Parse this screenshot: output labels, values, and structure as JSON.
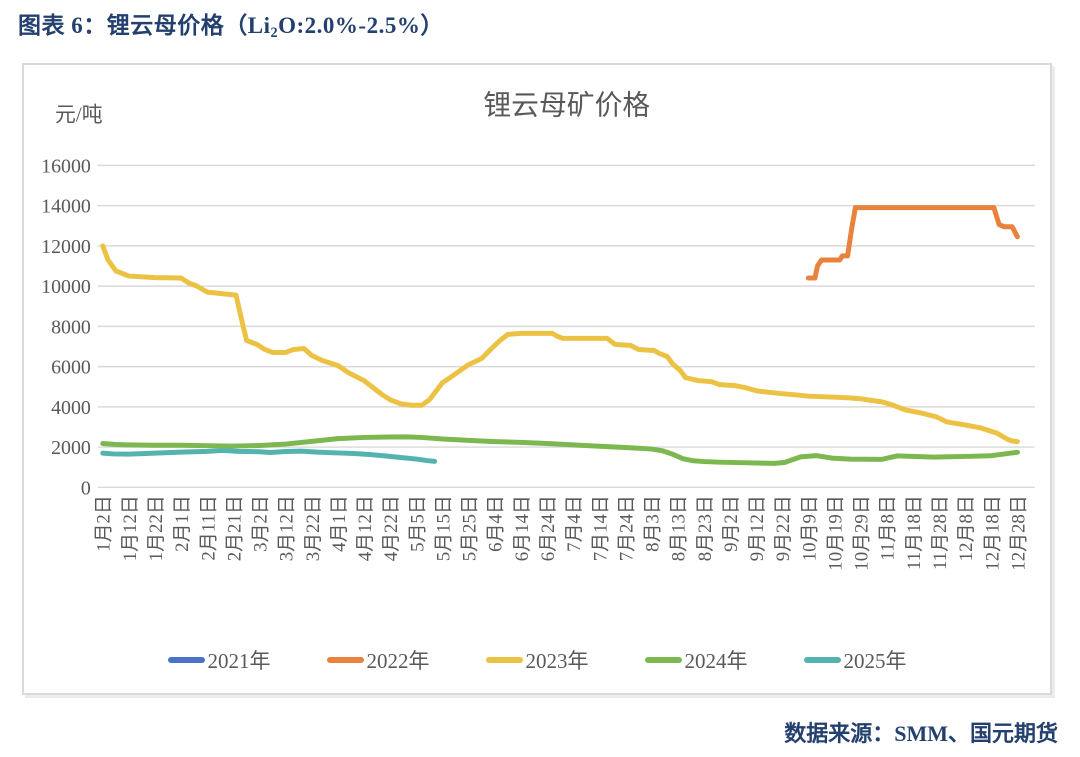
{
  "page": {
    "caption": {
      "prefix": "图表 6：锂云母价格（Li",
      "subscript": "2",
      "suffix": "O:2.0%-2.5%）"
    },
    "source": "数据来源：SMM、国元期货",
    "colors": {
      "caption_text": "#24406F",
      "axis_text": "#595959",
      "gridline": "#D9D9D9"
    }
  },
  "chart_data": {
    "type": "line",
    "title": "锂云母矿价格",
    "ylabel": "元/吨",
    "ylim": [
      0,
      16000
    ],
    "ytick_step": 2000,
    "grid": "horizontal-only",
    "legend_position": "bottom",
    "x_encoding": "points are [tick_index, price]; tick_index refers to x_tick_labels",
    "x_tick_labels": [
      "1月2日",
      "1月12日",
      "1月22日",
      "2月1日",
      "2月11日",
      "2月21日",
      "3月2日",
      "3月12日",
      "3月22日",
      "4月1日",
      "4月12日",
      "4月22日",
      "5月5日",
      "5月15日",
      "5月25日",
      "6月4日",
      "6月14日",
      "6月24日",
      "7月4日",
      "7月14日",
      "7月24日",
      "8月3日",
      "8月13日",
      "8月23日",
      "9月2日",
      "9月12日",
      "9月22日",
      "10月9日",
      "10月19日",
      "10月29日",
      "11月8日",
      "11月18日",
      "11月28日",
      "12月8日",
      "12月18日",
      "12月28日"
    ],
    "series": [
      {
        "name": "2021年",
        "color": "#4A73C8",
        "points": []
      },
      {
        "name": "2022年",
        "color": "#E8823C",
        "points": [
          [
            27,
            10400
          ],
          [
            27.25,
            10400
          ],
          [
            27.35,
            11000
          ],
          [
            27.5,
            11300
          ],
          [
            28.2,
            11300
          ],
          [
            28.3,
            11500
          ],
          [
            28.5,
            11500
          ],
          [
            28.65,
            12800
          ],
          [
            28.8,
            13900
          ],
          [
            34.1,
            13900
          ],
          [
            34.3,
            13050
          ],
          [
            34.5,
            12950
          ],
          [
            34.8,
            12950
          ],
          [
            35,
            12450
          ]
        ]
      },
      {
        "name": "2023年",
        "color": "#ECC244",
        "points": [
          [
            0,
            12000
          ],
          [
            0.2,
            11300
          ],
          [
            0.5,
            10750
          ],
          [
            1,
            10500
          ],
          [
            2,
            10420
          ],
          [
            3,
            10400
          ],
          [
            3.3,
            10150
          ],
          [
            3.6,
            10000
          ],
          [
            4,
            9700
          ],
          [
            4.6,
            9620
          ],
          [
            5.1,
            9550
          ],
          [
            5.3,
            8400
          ],
          [
            5.5,
            7300
          ],
          [
            5.9,
            7100
          ],
          [
            6.2,
            6850
          ],
          [
            6.5,
            6700
          ],
          [
            7,
            6700
          ],
          [
            7.3,
            6850
          ],
          [
            7.7,
            6900
          ],
          [
            8,
            6550
          ],
          [
            8.4,
            6300
          ],
          [
            9,
            6050
          ],
          [
            9.4,
            5700
          ],
          [
            10,
            5300
          ],
          [
            10.4,
            4900
          ],
          [
            10.7,
            4600
          ],
          [
            11,
            4350
          ],
          [
            11.4,
            4150
          ],
          [
            11.8,
            4080
          ],
          [
            12.2,
            4080
          ],
          [
            12.5,
            4350
          ],
          [
            13,
            5200
          ],
          [
            13.4,
            5550
          ],
          [
            14,
            6100
          ],
          [
            14.5,
            6400
          ],
          [
            14.8,
            6800
          ],
          [
            15.2,
            7300
          ],
          [
            15.5,
            7600
          ],
          [
            16,
            7650
          ],
          [
            17.2,
            7650
          ],
          [
            17.4,
            7500
          ],
          [
            17.6,
            7400
          ],
          [
            19.3,
            7400
          ],
          [
            19.6,
            7100
          ],
          [
            20.2,
            7050
          ],
          [
            20.5,
            6850
          ],
          [
            21.1,
            6800
          ],
          [
            21.3,
            6650
          ],
          [
            21.6,
            6500
          ],
          [
            21.8,
            6150
          ],
          [
            22.1,
            5800
          ],
          [
            22.3,
            5450
          ],
          [
            22.8,
            5300
          ],
          [
            23.3,
            5250
          ],
          [
            23.6,
            5100
          ],
          [
            24.2,
            5050
          ],
          [
            24.6,
            4950
          ],
          [
            25,
            4800
          ],
          [
            25.5,
            4720
          ],
          [
            26,
            4650
          ],
          [
            26.5,
            4600
          ],
          [
            27,
            4530
          ],
          [
            28,
            4480
          ],
          [
            28.5,
            4450
          ],
          [
            29,
            4400
          ],
          [
            29.5,
            4300
          ],
          [
            29.8,
            4250
          ],
          [
            30.2,
            4100
          ],
          [
            30.7,
            3850
          ],
          [
            31.3,
            3700
          ],
          [
            31.9,
            3500
          ],
          [
            32.3,
            3250
          ],
          [
            33,
            3100
          ],
          [
            33.6,
            2950
          ],
          [
            34.2,
            2700
          ],
          [
            34.6,
            2400
          ],
          [
            34.8,
            2300
          ],
          [
            35,
            2270
          ]
        ]
      },
      {
        "name": "2024年",
        "color": "#7CB84F",
        "points": [
          [
            0,
            2180
          ],
          [
            0.5,
            2130
          ],
          [
            1,
            2110
          ],
          [
            2,
            2090
          ],
          [
            3,
            2090
          ],
          [
            4,
            2070
          ],
          [
            5,
            2050
          ],
          [
            6,
            2080
          ],
          [
            7,
            2150
          ],
          [
            8,
            2280
          ],
          [
            9,
            2420
          ],
          [
            10,
            2480
          ],
          [
            11,
            2500
          ],
          [
            11.6,
            2510
          ],
          [
            12.2,
            2480
          ],
          [
            13,
            2400
          ],
          [
            14,
            2330
          ],
          [
            15,
            2270
          ],
          [
            16,
            2230
          ],
          [
            17,
            2180
          ],
          [
            18,
            2110
          ],
          [
            19,
            2040
          ],
          [
            20,
            1980
          ],
          [
            21,
            1900
          ],
          [
            21.4,
            1820
          ],
          [
            21.8,
            1650
          ],
          [
            22.2,
            1420
          ],
          [
            22.6,
            1320
          ],
          [
            23,
            1280
          ],
          [
            23.6,
            1250
          ],
          [
            24.3,
            1230
          ],
          [
            25,
            1210
          ],
          [
            25.7,
            1190
          ],
          [
            26.1,
            1240
          ],
          [
            26.7,
            1510
          ],
          [
            27.3,
            1575
          ],
          [
            27.9,
            1450
          ],
          [
            28.6,
            1400
          ],
          [
            29.8,
            1390
          ],
          [
            30.4,
            1560
          ],
          [
            31.1,
            1530
          ],
          [
            31.8,
            1500
          ],
          [
            32.4,
            1520
          ],
          [
            33.2,
            1540
          ],
          [
            34,
            1570
          ],
          [
            34.8,
            1710
          ],
          [
            35,
            1740
          ]
        ]
      },
      {
        "name": "2025年",
        "color": "#54B3AE",
        "points": [
          [
            0,
            1700
          ],
          [
            0.4,
            1660
          ],
          [
            1,
            1650
          ],
          [
            2,
            1700
          ],
          [
            3,
            1750
          ],
          [
            4,
            1790
          ],
          [
            4.6,
            1830
          ],
          [
            5.2,
            1790
          ],
          [
            6,
            1770
          ],
          [
            6.4,
            1730
          ],
          [
            7,
            1780
          ],
          [
            7.6,
            1800
          ],
          [
            8.2,
            1750
          ],
          [
            9,
            1710
          ],
          [
            9.6,
            1680
          ],
          [
            10.2,
            1630
          ],
          [
            10.8,
            1560
          ],
          [
            11.4,
            1480
          ],
          [
            12,
            1400
          ],
          [
            12.4,
            1330
          ],
          [
            12.7,
            1290
          ]
        ]
      }
    ]
  }
}
